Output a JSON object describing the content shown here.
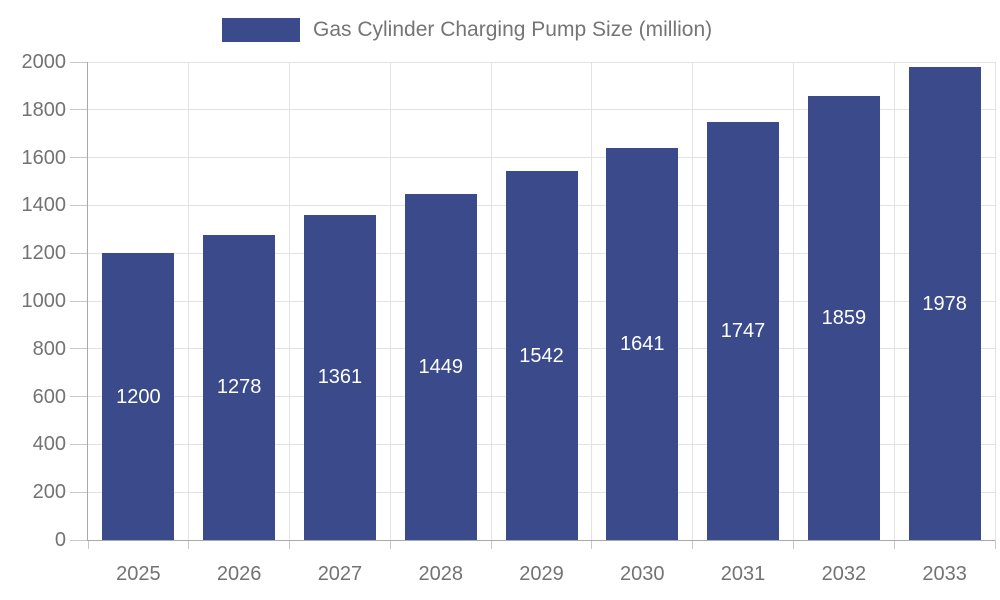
{
  "legend": {
    "label": "Gas Cylinder Charging Pump Size (million)"
  },
  "chart_data": {
    "type": "bar",
    "title": "Gas Cylinder Charging Pump Size (million)",
    "series_name": "Gas Cylinder Charging Pump Size (million)",
    "categories": [
      "2025",
      "2026",
      "2027",
      "2028",
      "2029",
      "2030",
      "2031",
      "2032",
      "2033"
    ],
    "values": [
      1200,
      1278,
      1361,
      1449,
      1542,
      1641,
      1747,
      1859,
      1978
    ],
    "xlabel": "",
    "ylabel": "",
    "ylim": [
      0,
      2000
    ],
    "ytick_step": 200,
    "yticks": [
      0,
      200,
      400,
      600,
      800,
      1000,
      1200,
      1400,
      1600,
      1800,
      2000
    ],
    "grid": true,
    "legend_position": "top-center",
    "value_label_position": "inside-middle"
  },
  "colors": {
    "bar": "#3a4a8b",
    "grid": "#e3e3e3",
    "axis": "#a9a9a9",
    "tick": "#c8c8c8",
    "tick_label": "#737373",
    "legend_text": "#757575",
    "value_label": "#ffffff",
    "background": "#ffffff"
  }
}
